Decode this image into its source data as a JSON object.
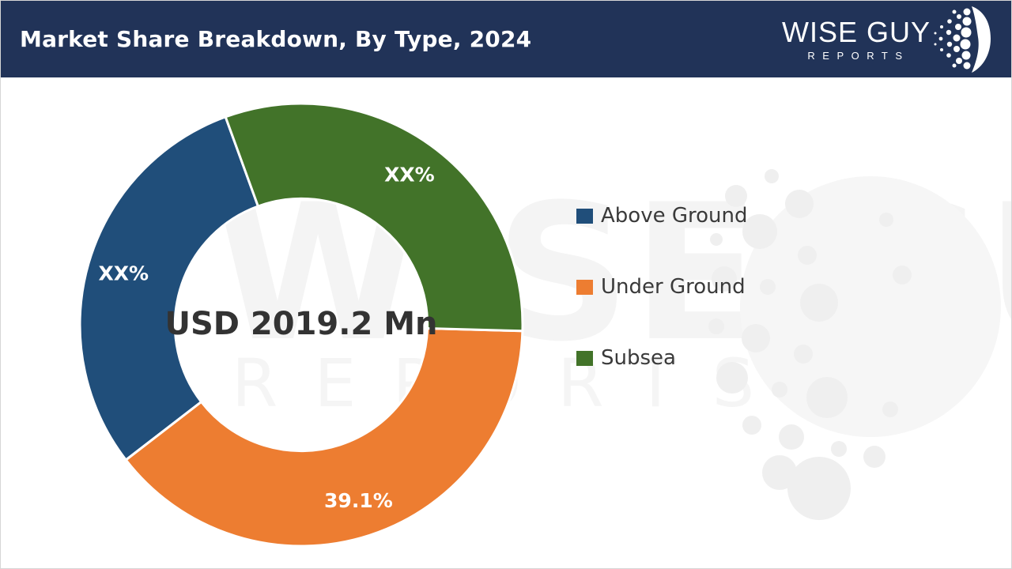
{
  "header": {
    "title": "Market Share Breakdown, By Type, 2024",
    "bg_color": "#213358",
    "logo": {
      "line1": "WISE GUY",
      "line2": "REPORTS"
    }
  },
  "watermark": {
    "line1": "WISE GUY",
    "line2": "REPORTS"
  },
  "chart_data": {
    "type": "pie",
    "subtype": "donut",
    "title": "Market Share Breakdown, By Type, 2024",
    "center_label": "USD 2019.2 Mn",
    "hole_ratio": 0.57,
    "start_angle_deg": 110,
    "direction": "ccw",
    "legend_position": "right",
    "segments": [
      {
        "label": "Above Ground",
        "display_value": "XX%",
        "percent": 29.9,
        "color": "#204E7A"
      },
      {
        "label": "Under Ground",
        "display_value": "39.1%",
        "percent": 39.1,
        "color": "#ED7D31"
      },
      {
        "label": "Subsea",
        "display_value": "XX%",
        "percent": 31.0,
        "color": "#427329"
      }
    ]
  },
  "colors": {
    "header_bg": "#213358",
    "center_text": "#333333",
    "legend_text": "#3A3A3A",
    "segment_label_text": "#FFFFFF"
  }
}
